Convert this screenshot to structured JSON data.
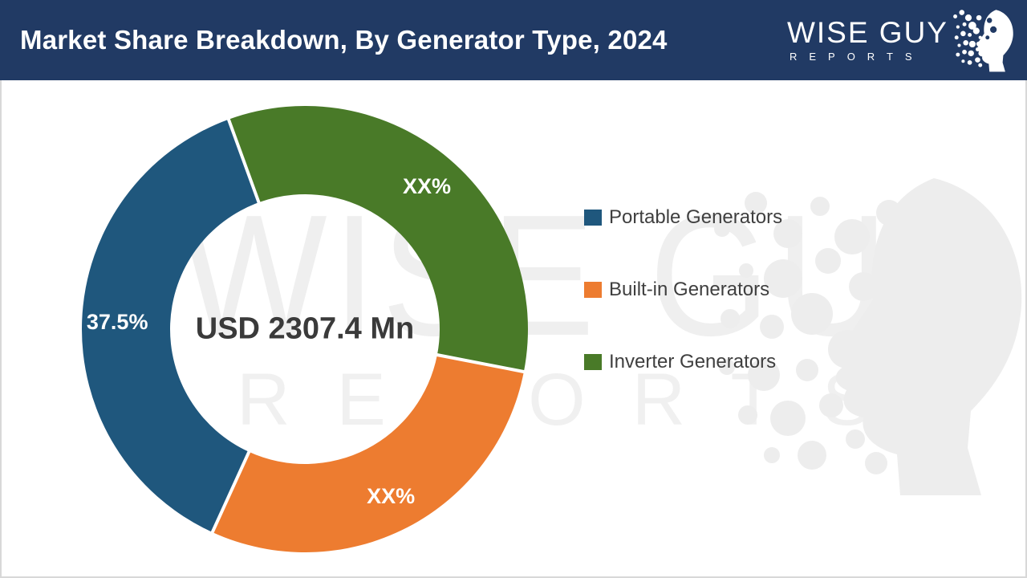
{
  "header": {
    "title": "Market Share Breakdown, By Generator Type, 2024",
    "bg_color": "#213A64",
    "logo": {
      "wordmark": "WISE GUY",
      "subtext": "REPORTS"
    }
  },
  "watermark": {
    "wordmark": "WISE GUY",
    "subtext": "REPORTS"
  },
  "chart_data": {
    "type": "donut",
    "title": "Market Share Breakdown, By Generator Type, 2024",
    "center_label": "USD 2307.4 Mn",
    "start_angle_deg": -20,
    "legend_position": "right",
    "segments": [
      {
        "name": "Inverter Generators",
        "label": "XX%",
        "sweep_deg": 121.0,
        "color": "#497A28"
      },
      {
        "name": "Built-in Generators",
        "label": "XX%",
        "sweep_deg": 103.5,
        "color": "#ED7C30"
      },
      {
        "name": "Portable Generators",
        "label": "37.5%",
        "sweep_deg": 135.5,
        "color": "#1F577D"
      }
    ]
  },
  "legend": {
    "items": [
      {
        "label": "Portable Generators",
        "color": "#1F577D"
      },
      {
        "label": "Built-in Generators",
        "color": "#ED7C30"
      },
      {
        "label": "Inverter Generators",
        "color": "#497A28"
      }
    ]
  }
}
